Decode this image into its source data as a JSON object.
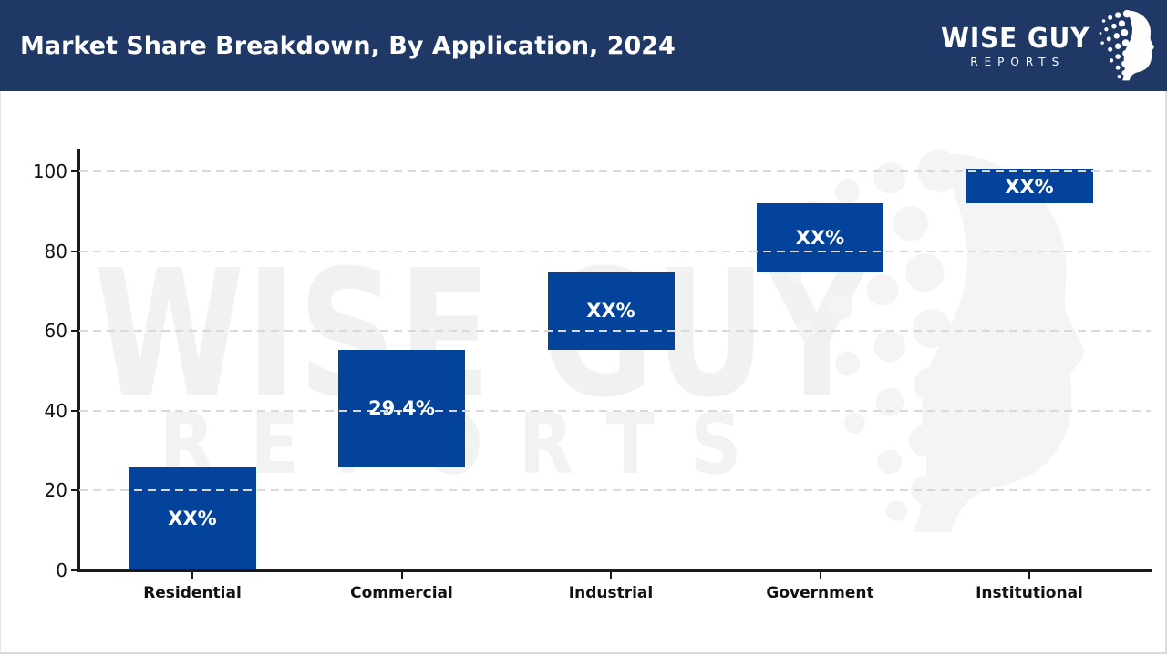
{
  "header": {
    "title": "Market Share Breakdown, By Application, 2024",
    "brand": {
      "name": "WISE GUY",
      "subtitle": "REPORTS"
    }
  },
  "watermark": {
    "line1": "WISE GUY",
    "line2": "REPORTS"
  },
  "chart_data": {
    "type": "bar",
    "subtype": "waterfall",
    "title": "Market Share Breakdown, By Application, 2024",
    "categories": [
      "Residential",
      "Commercial",
      "Industrial",
      "Government",
      "Institutional"
    ],
    "segments": [
      {
        "category": "Residential",
        "start": 0,
        "end": 25.9,
        "value": 25.9,
        "label": "XX%"
      },
      {
        "category": "Commercial",
        "start": 25.9,
        "end": 55.3,
        "value": 29.4,
        "label": "29.4%"
      },
      {
        "category": "Industrial",
        "start": 55.3,
        "end": 74.7,
        "value": 19.4,
        "label": "XX%"
      },
      {
        "category": "Government",
        "start": 74.7,
        "end": 91.9,
        "value": 17.2,
        "label": "XX%"
      },
      {
        "category": "Institutional",
        "start": 91.9,
        "end": 100.5,
        "value": 8.6,
        "label": "XX%"
      }
    ],
    "xlabel": "",
    "ylabel": "",
    "yticks": [
      0,
      20,
      40,
      60,
      80,
      100
    ],
    "ylim": [
      0,
      105
    ],
    "grid": "horizontal-dashed-over-bars",
    "legend": "none"
  },
  "colors": {
    "header_bg": "#1F3866",
    "bar": "#04439C",
    "bar_label_text": "#FFFFFF",
    "grid": "#D9D9D9",
    "axis": "#1A1A1A",
    "tick_text": "#111111",
    "watermark": "#F1F1F1",
    "title_text": "#FFFFFF"
  }
}
